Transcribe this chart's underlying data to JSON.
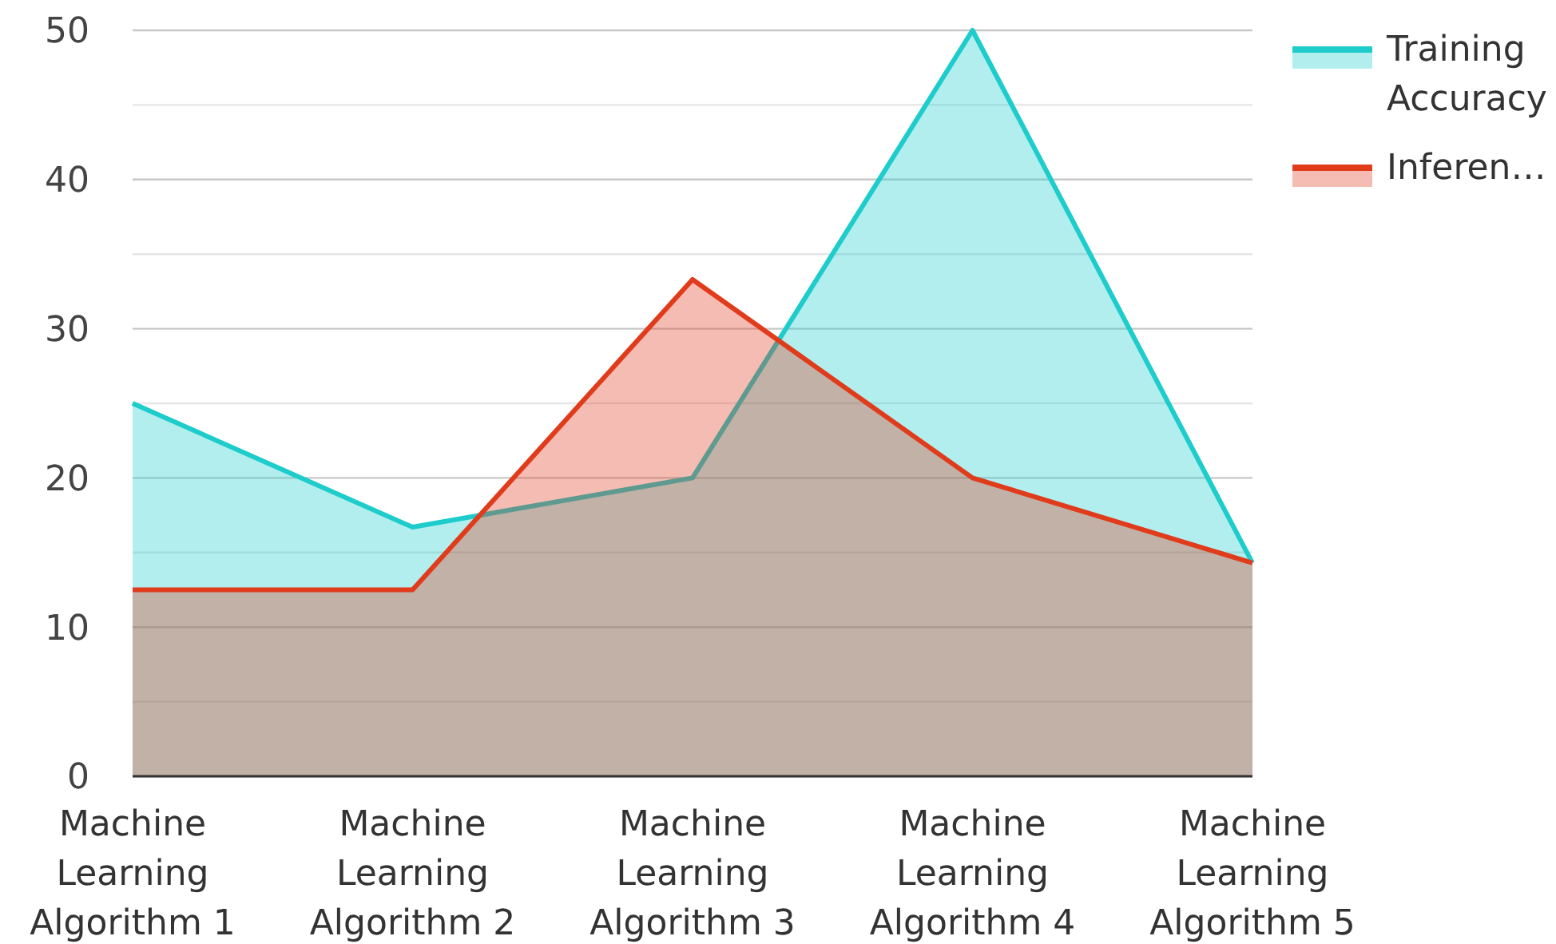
{
  "chart_data": {
    "type": "area",
    "categories": [
      "Machine Learning Algorithm 1",
      "Machine Learning Algorithm 2",
      "Machine Learning Algorithm 3",
      "Machine Learning Algorithm 4",
      "Machine Learning Algorithm 5"
    ],
    "series": [
      {
        "name": "Training Accuracy",
        "color": "#1ecccc",
        "values": [
          25,
          16.7,
          20,
          50,
          14.3
        ]
      },
      {
        "name": "Inferen…",
        "color": "#e03c1c",
        "values": [
          12.5,
          12.5,
          33.3,
          20,
          14.3
        ]
      }
    ],
    "ylim": [
      0,
      50
    ],
    "yticks": [
      0,
      {
        "value": 5,
        "label": null
      },
      10,
      {
        "value": 15,
        "label": null
      },
      20,
      {
        "value": 25,
        "label": null
      },
      30,
      {
        "value": 35,
        "label": null
      },
      40,
      {
        "value": 45,
        "label": null
      },
      50
    ],
    "grid": "y",
    "legend": "top right"
  }
}
